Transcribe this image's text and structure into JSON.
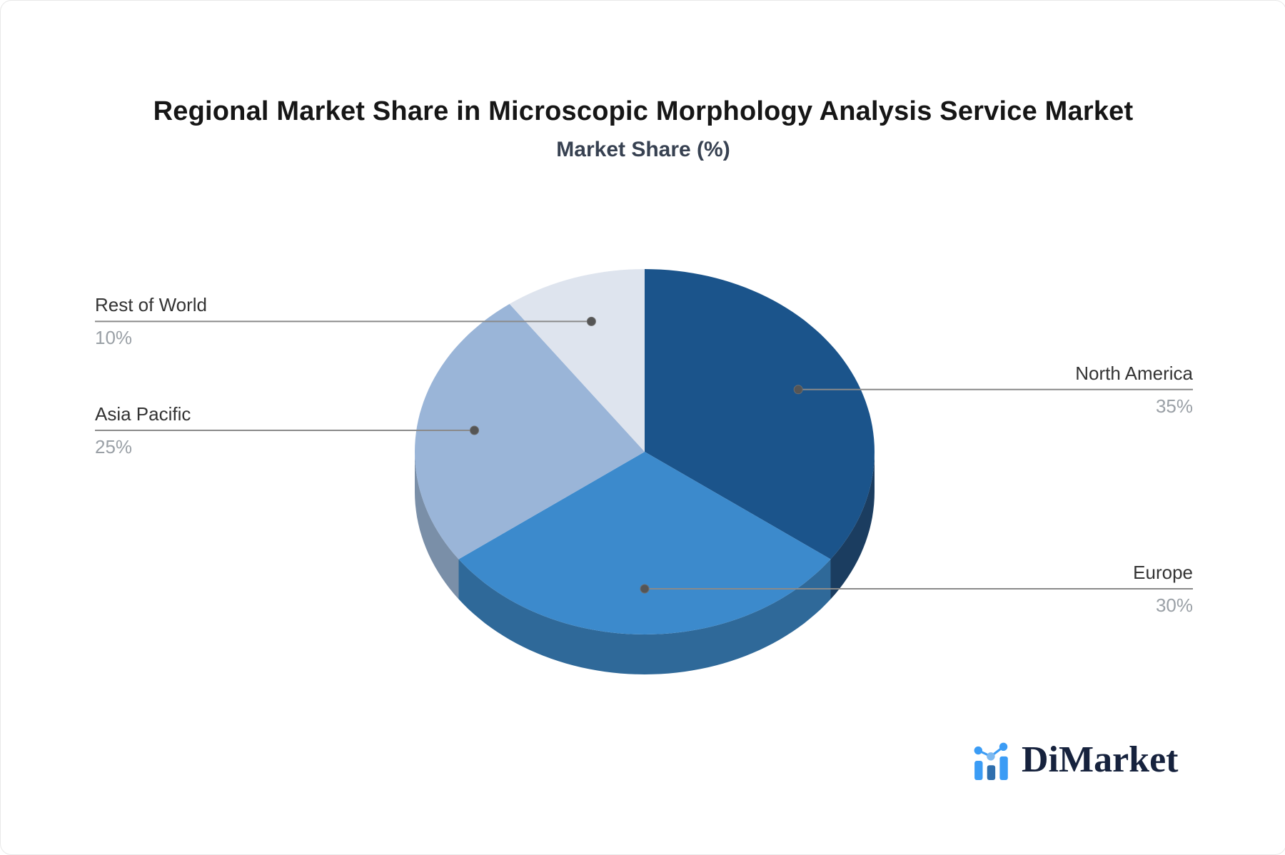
{
  "title": "Regional Market Share in Microscopic Morphology Analysis Service Market",
  "subtitle": "Market Share (%)",
  "brand": {
    "name": "DiMarket",
    "icon": "bar-chart-trend-icon",
    "accent_color": "#3b9cf5",
    "text_color": "#16223d"
  },
  "style": {
    "label_text_color": "#333333",
    "percent_text_color": "#9aa0a6",
    "leader_line_color": "#8a8a8a",
    "leader_dot_color": "#555555",
    "background": "#ffffff"
  },
  "chart_data": {
    "type": "pie",
    "title": "Regional Market Share in Microscopic Morphology Analysis Service Market",
    "subtitle": "Market Share (%)",
    "unit": "%",
    "effect_3d": true,
    "start_angle_deg": 0,
    "direction": "clockwise",
    "legend_position": "callout-labels",
    "categories": [
      "North America",
      "Europe",
      "Asia Pacific",
      "Rest of World"
    ],
    "values": [
      35,
      30,
      25,
      10
    ],
    "slices": [
      {
        "label": "North America",
        "value": 35,
        "pct_label": "35%",
        "color": "#1b548b",
        "side_color": "#1b3d60"
      },
      {
        "label": "Europe",
        "value": 30,
        "pct_label": "30%",
        "color": "#3c8acc",
        "side_color": "#2f6999"
      },
      {
        "label": "Asia Pacific",
        "value": 25,
        "pct_label": "25%",
        "color": "#9ab5d8",
        "side_color": "#7a8fa8"
      },
      {
        "label": "Rest of World",
        "value": 10,
        "pct_label": "10%",
        "color": "#dee4ee",
        "side_color": "#b9c4d6"
      }
    ]
  }
}
